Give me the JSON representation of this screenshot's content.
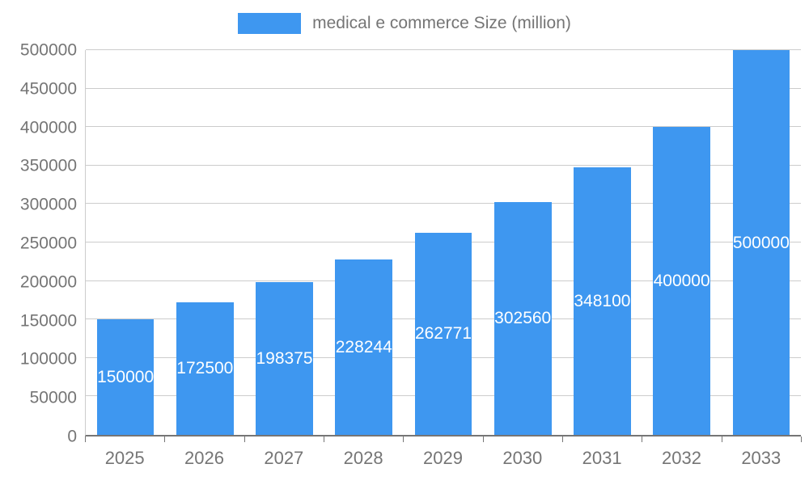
{
  "chart_data": {
    "type": "bar",
    "title": "medical e commerce Size (million)",
    "categories": [
      "2025",
      "2026",
      "2027",
      "2028",
      "2029",
      "2030",
      "2031",
      "2032",
      "2033"
    ],
    "values": [
      150000,
      172500,
      198375,
      228244,
      262771,
      302560,
      348100,
      400000,
      500000
    ],
    "value_labels": [
      "150000",
      "172500",
      "198375",
      "228244",
      "262771",
      "302560",
      "348100",
      "400000",
      "500000"
    ],
    "xlabel": "",
    "ylabel": "",
    "ylim": [
      0,
      500000
    ],
    "y_ticks": [
      0,
      50000,
      100000,
      150000,
      200000,
      250000,
      300000,
      350000,
      400000,
      450000,
      500000
    ],
    "grid": true,
    "legend_position": "top",
    "colors": {
      "bar": "#3E97F0",
      "grid": "#CCCCCC",
      "axis_text": "#757575",
      "axis_line": "#757575",
      "bar_label": "#FFFFFF"
    }
  }
}
